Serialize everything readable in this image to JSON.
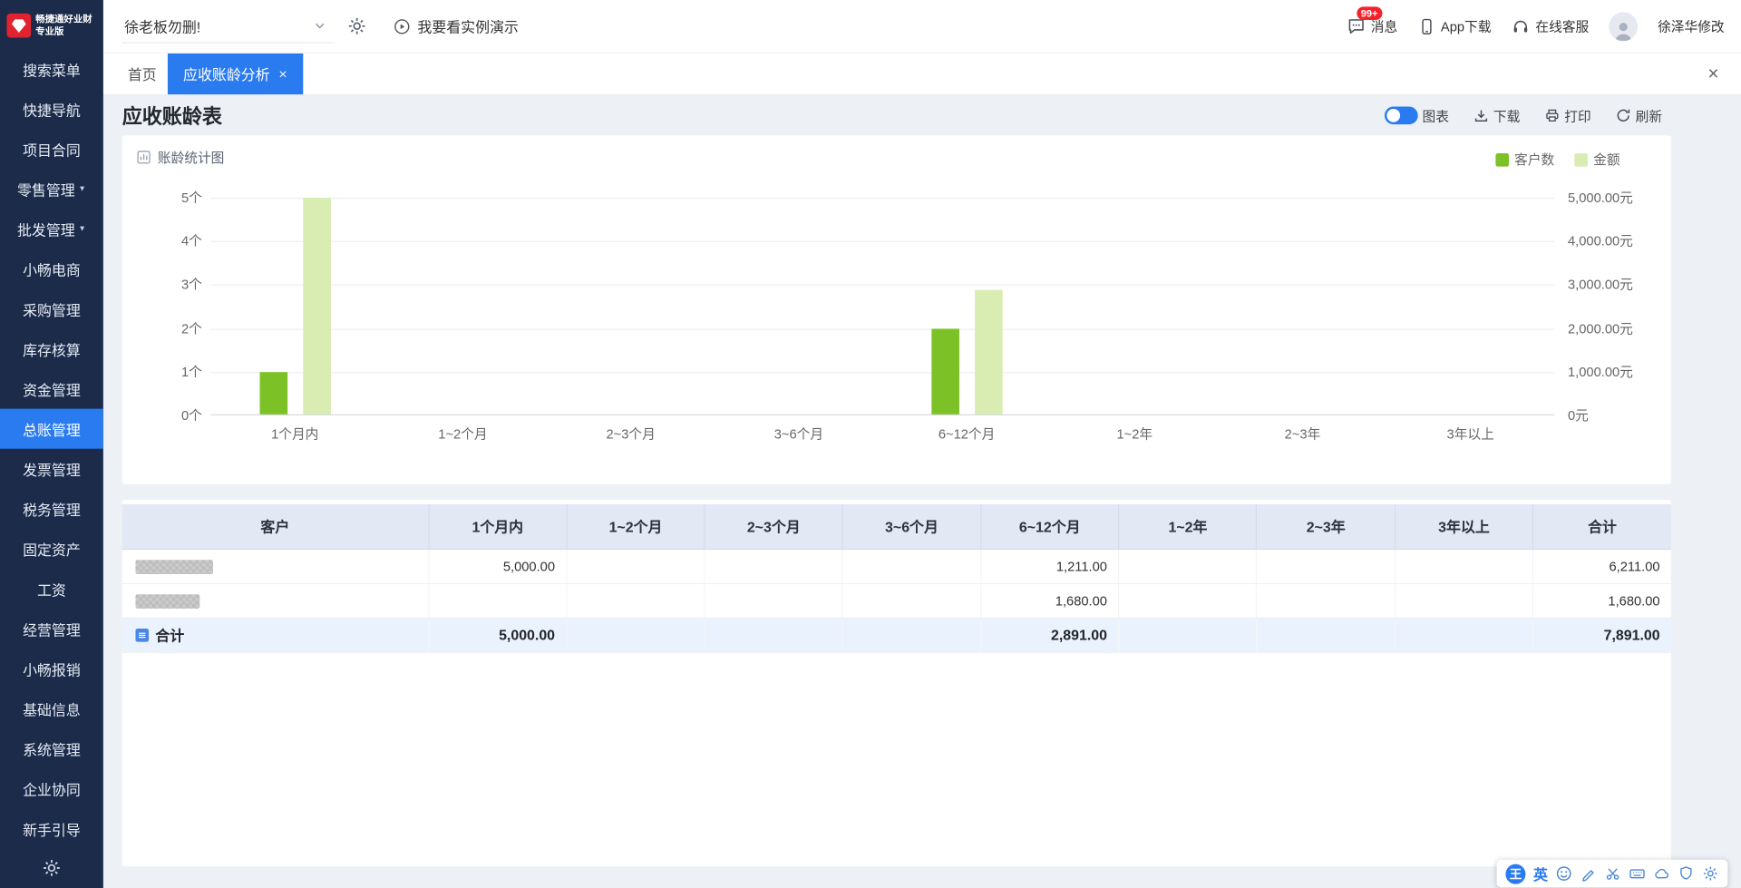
{
  "app": {
    "brand": {
      "name": "畅捷通好业财",
      "edition": "专业版"
    }
  },
  "colors": {
    "accent": "#2a7bf0",
    "sidebar_bg": "#1c2b4a",
    "badge_red": "#f5222d",
    "bar_customer_count": "#7cc226",
    "bar_amount": "#d9ecb2",
    "table_header_bg": "#e2e8f4",
    "total_row_bg": "#eaf2fd",
    "brand_logo_red": "#e0232e"
  },
  "sidebar": {
    "active_item": "总账管理",
    "items": [
      {
        "id": "search-menu",
        "label": "搜索菜单"
      },
      {
        "id": "quick-nav",
        "label": "快捷导航"
      },
      {
        "id": "project-contract",
        "label": "项目合同"
      },
      {
        "id": "retail-mgmt",
        "label": "零售管理",
        "caret": true
      },
      {
        "id": "wholesale-mgmt",
        "label": "批发管理",
        "caret": true
      },
      {
        "id": "xiaochang-ecommerce",
        "label": "小畅电商"
      },
      {
        "id": "purchase-mgmt",
        "label": "采购管理"
      },
      {
        "id": "inventory-accounting",
        "label": "库存核算"
      },
      {
        "id": "funds-mgmt",
        "label": "资金管理"
      },
      {
        "id": "general-ledger",
        "label": "总账管理"
      },
      {
        "id": "invoice-mgmt",
        "label": "发票管理"
      },
      {
        "id": "tax-mgmt",
        "label": "税务管理"
      },
      {
        "id": "fixed-assets",
        "label": "固定资产"
      },
      {
        "id": "payroll",
        "label": "工资"
      },
      {
        "id": "operation-mgmt",
        "label": "经营管理"
      },
      {
        "id": "xiaochang-expense",
        "label": "小畅报销"
      },
      {
        "id": "basic-info",
        "label": "基础信息"
      },
      {
        "id": "system-mgmt",
        "label": "系统管理"
      },
      {
        "id": "enterprise-collab",
        "label": "企业协同"
      },
      {
        "id": "beginner-guide",
        "label": "新手引导"
      }
    ]
  },
  "topbar": {
    "company": "徐老板勿删!",
    "demo": "我要看实例演示",
    "messages": "消息",
    "messages_badge": "99+",
    "app_download": "App下载",
    "online_support": "在线客服",
    "user": "徐泽华修改"
  },
  "tabs": [
    {
      "label": "首页",
      "active": false
    },
    {
      "label": "应收账龄分析",
      "active": true,
      "closable": true
    }
  ],
  "page": {
    "title": "应收账龄表",
    "view_toggle_label": "图表",
    "actions": {
      "download": "下载",
      "print": "打印",
      "refresh": "刷新"
    }
  },
  "chart": {
    "header": "账龄统计图"
  },
  "chart_data": {
    "type": "bar",
    "title": "账龄统计图",
    "categories": [
      "1个月内",
      "1~2个月",
      "2~3个月",
      "3~6个月",
      "6~12个月",
      "1~2年",
      "2~3年",
      "3年以上"
    ],
    "series": [
      {
        "name": "客户数",
        "yaxis": "left",
        "color": "#7cc226",
        "values": [
          1,
          0,
          0,
          0,
          2,
          0,
          0,
          0
        ]
      },
      {
        "name": "金额",
        "yaxis": "right",
        "color": "#d9ecb2",
        "values": [
          5000,
          0,
          0,
          0,
          2891,
          0,
          0,
          0
        ]
      }
    ],
    "left_axis": {
      "min": 0,
      "max": 5,
      "ticks": [
        "0个",
        "1个",
        "2个",
        "3个",
        "4个",
        "5个"
      ]
    },
    "right_axis": {
      "min": 0,
      "max": 5000,
      "ticks": [
        "0元",
        "1,000.00元",
        "2,000.00元",
        "3,000.00元",
        "4,000.00元",
        "5,000.00元"
      ]
    },
    "grid": true,
    "legend_position": "top-right"
  },
  "table": {
    "columns": [
      "客户",
      "1个月内",
      "1~2个月",
      "2~3个月",
      "3~6个月",
      "6~12个月",
      "1~2年",
      "2~3年",
      "3年以上",
      "合计"
    ],
    "rows": [
      {
        "customer": "",
        "redacted": true,
        "values": [
          "5,000.00",
          "",
          "",
          "",
          "1,211.00",
          "",
          "",
          "",
          "6,211.00"
        ]
      },
      {
        "customer": "",
        "redacted": true,
        "values": [
          "",
          "",
          "",
          "",
          "1,680.00",
          "",
          "",
          "",
          "1,680.00"
        ]
      }
    ],
    "total_row": {
      "label": "合计",
      "values": [
        "5,000.00",
        "",
        "",
        "",
        "2,891.00",
        "",
        "",
        "",
        "7,891.00"
      ]
    }
  },
  "ime": {
    "logo": "王",
    "lang": "英",
    "tools": [
      "emoji",
      "handwriting",
      "screenshot",
      "keyboard",
      "cloud",
      "skin",
      "settings"
    ]
  }
}
